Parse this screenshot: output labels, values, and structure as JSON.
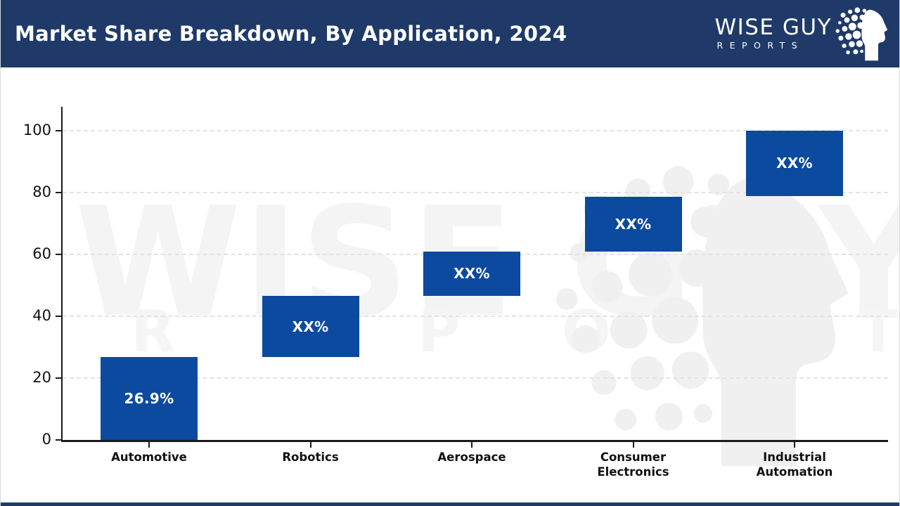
{
  "header": {
    "title": "Market Share Breakdown, By Application, 2024",
    "logo_line1": "WISE GUY",
    "logo_line2": "REPORTS",
    "background": "#1f3a68"
  },
  "watermark": {
    "word": "WISE GUY",
    "reports": "R E P O R T S"
  },
  "chart_data": {
    "type": "bar",
    "subtype": "waterfall",
    "title": "Market Share Breakdown, By Application, 2024",
    "xlabel": "",
    "ylabel": "",
    "ylim": [
      0,
      100
    ],
    "yticks": [
      0,
      20,
      40,
      60,
      80,
      100
    ],
    "grid": "horizontal-dashed",
    "bar_color": "#0b4a9f",
    "label_color": "#ffffff",
    "categories": [
      "Automotive",
      "Robotics",
      "Aerospace",
      "Consumer\nElectronics",
      "Industrial\nAutomation"
    ],
    "segments": [
      {
        "category": "Automotive",
        "start": 0,
        "end": 26.9,
        "label": "26.9%"
      },
      {
        "category": "Robotics",
        "start": 26.9,
        "end": 46.5,
        "label": "XX%"
      },
      {
        "category": "Aerospace",
        "start": 46.5,
        "end": 61,
        "label": "XX%"
      },
      {
        "category": "Consumer\nElectronics",
        "start": 61,
        "end": 78.6,
        "label": "XX%"
      },
      {
        "category": "Industrial\nAutomation",
        "start": 78.9,
        "end": 100,
        "label": "XX%"
      }
    ]
  }
}
